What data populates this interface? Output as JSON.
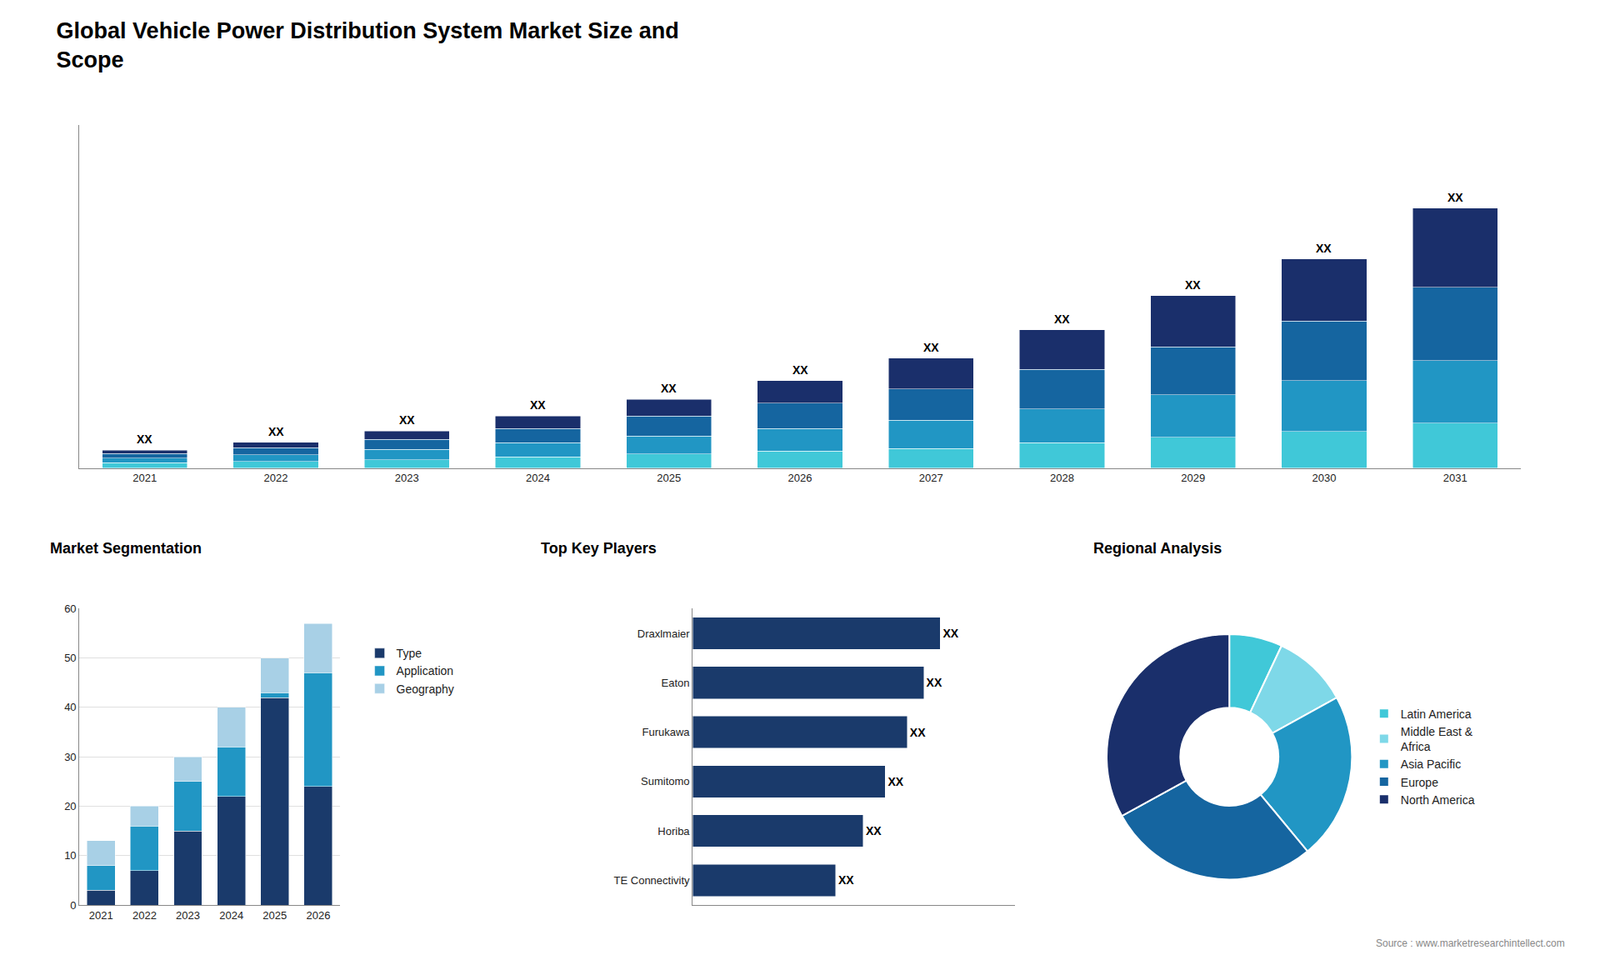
{
  "chart_data": [
    {
      "type": "bar",
      "title": "Global Vehicle Power Distribution System Market Size and\nScope",
      "stacked": true,
      "categories": [
        "2021",
        "2022",
        "2023",
        "2024",
        "2025",
        "2026",
        "2027",
        "2028",
        "2029",
        "2030",
        "2031"
      ],
      "series": [
        {
          "color": "#40c8d8",
          "values": [
            1.0,
            1.2,
            1.5,
            2.0,
            2.5,
            3.0,
            3.5,
            4.5,
            5.5,
            6.5,
            8.0
          ]
        },
        {
          "color": "#2196c4",
          "values": [
            0.8,
            1.2,
            1.8,
            2.5,
            3.2,
            4.0,
            5.0,
            6.0,
            7.5,
            9.0,
            11.0
          ]
        },
        {
          "color": "#1565a0",
          "values": [
            0.8,
            1.2,
            1.8,
            2.5,
            3.5,
            4.5,
            5.5,
            7.0,
            8.5,
            10.5,
            13.0
          ]
        },
        {
          "color": "#1a2f6b",
          "values": [
            0.6,
            1.0,
            1.5,
            2.2,
            3.0,
            4.0,
            5.5,
            7.0,
            9.0,
            11.0,
            14.0
          ]
        }
      ],
      "ylim": [
        0,
        60.72
      ],
      "tick_labels": "x",
      "grid": false,
      "annotations": [
        {
          "x": "2021",
          "text": "XX"
        },
        {
          "x": "2022",
          "text": "XX"
        },
        {
          "x": "2023",
          "text": "XX"
        },
        {
          "x": "2024",
          "text": "XX"
        },
        {
          "x": "2025",
          "text": "XX"
        },
        {
          "x": "2026",
          "text": "XX"
        },
        {
          "x": "2027",
          "text": "XX"
        },
        {
          "x": "2028",
          "text": "XX"
        },
        {
          "x": "2029",
          "text": "XX"
        },
        {
          "x": "2030",
          "text": "XX"
        },
        {
          "x": "2031",
          "text": "XX"
        }
      ]
    },
    {
      "type": "bar",
      "title": "Market Segmentation",
      "stacked": true,
      "categories": [
        "2021",
        "2022",
        "2023",
        "2024",
        "2025",
        "2026"
      ],
      "series": [
        {
          "name": "Type",
          "color": "#1a3a6b",
          "values": [
            3,
            7,
            15,
            22,
            42,
            24
          ]
        },
        {
          "name": "Application",
          "color": "#2196c4",
          "values": [
            5,
            9,
            10,
            10,
            1,
            23
          ]
        },
        {
          "name": "Geography",
          "color": "#a8d0e6",
          "values": [
            5,
            4,
            5,
            8,
            7,
            10
          ]
        }
      ],
      "ylim": [
        0,
        60
      ],
      "yticks": [
        0,
        10,
        20,
        30,
        40,
        50,
        60
      ],
      "grid": true,
      "legend": "right"
    },
    {
      "type": "bar",
      "orientation": "horizontal",
      "title": "Top Key Players",
      "categories": [
        "Draxlmaier",
        "Eaton",
        "Furukawa",
        "Sumitomo",
        "Horiba",
        "TE Connectivity"
      ],
      "values": [
        90,
        84,
        78,
        70,
        62,
        52
      ],
      "color": "#1a3a6b",
      "xlim": [
        0,
        117
      ],
      "tick_labels": "y",
      "grid": false,
      "data_labels": true,
      "value_labels": [
        "XX",
        "XX",
        "XX",
        "XX",
        "XX",
        "XX"
      ]
    },
    {
      "type": "pie",
      "title": "Regional Analysis",
      "categories": [
        "Latin America",
        "Middle East &\nAfrica",
        "Asia Pacific",
        "Europe",
        "North America"
      ],
      "values": [
        7,
        10,
        22,
        28,
        33
      ],
      "colors": [
        "#40c8d8",
        "#7ed8e8",
        "#2196c4",
        "#1565a0",
        "#1a2f6b"
      ],
      "legend": "right",
      "annotations": [
        {
          "text": "Source : www.marketresearchintellect.com"
        }
      ]
    }
  ]
}
